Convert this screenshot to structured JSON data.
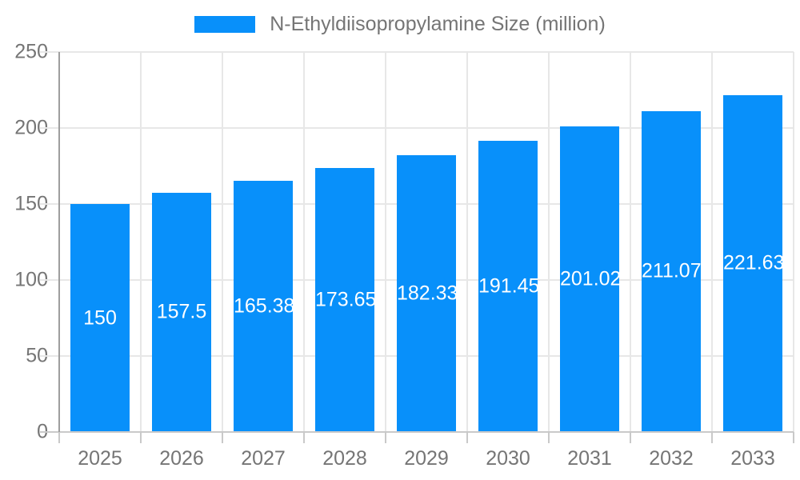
{
  "chart_data": {
    "type": "bar",
    "title": "N-Ethyldiisopropylamine Size (million)",
    "categories": [
      "2025",
      "2026",
      "2027",
      "2028",
      "2029",
      "2030",
      "2031",
      "2032",
      "2033"
    ],
    "values": [
      150,
      157.5,
      165.38,
      173.65,
      182.33,
      191.45,
      201.02,
      211.07,
      221.63
    ],
    "value_labels": [
      "150",
      "157.5",
      "165.38",
      "173.65",
      "182.33",
      "191.45",
      "201.02",
      "211.07",
      "221.63"
    ],
    "xlabel": "",
    "ylabel": "",
    "ylim": [
      0,
      250
    ],
    "yticks": [
      0,
      50,
      100,
      150,
      200,
      250
    ],
    "grid": "on",
    "legend_position": "top-center",
    "bar_color": "#0890fa",
    "grid_color": "#e7e7e7",
    "axis_text_color": "#757575",
    "bar_label_color": "#ffffff"
  }
}
